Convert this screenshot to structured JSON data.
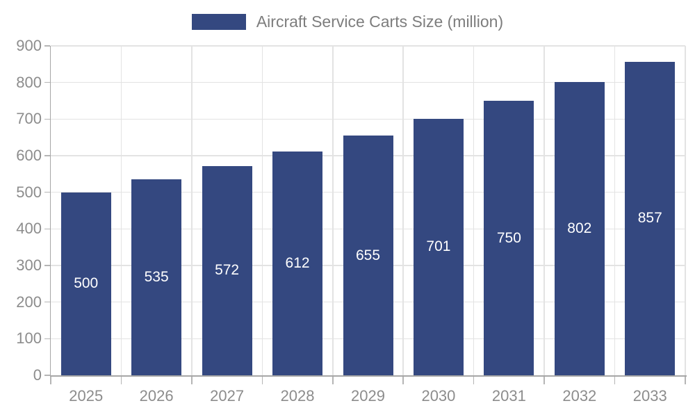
{
  "chart_data": {
    "type": "bar",
    "title": "",
    "series_name": "Aircraft Service Carts Size (million)",
    "categories": [
      "2025",
      "2026",
      "2027",
      "2028",
      "2029",
      "2030",
      "2031",
      "2032",
      "2033"
    ],
    "values": [
      500,
      535,
      572,
      612,
      655,
      701,
      750,
      802,
      857
    ],
    "yticks": [
      0,
      100,
      200,
      300,
      400,
      500,
      600,
      700,
      800,
      900
    ],
    "ylim": [
      0,
      900
    ],
    "xlabel": "",
    "ylabel": "",
    "grid": true,
    "legend_position": "top-center",
    "bar_color": "#344880",
    "bar_label_color": "#ffffff",
    "grid_color": "#e3e3e3",
    "axis_color": "#a6a6a6",
    "tick_text_color": "#8c8c8c",
    "legend_text_color": "#7d7d7d"
  }
}
